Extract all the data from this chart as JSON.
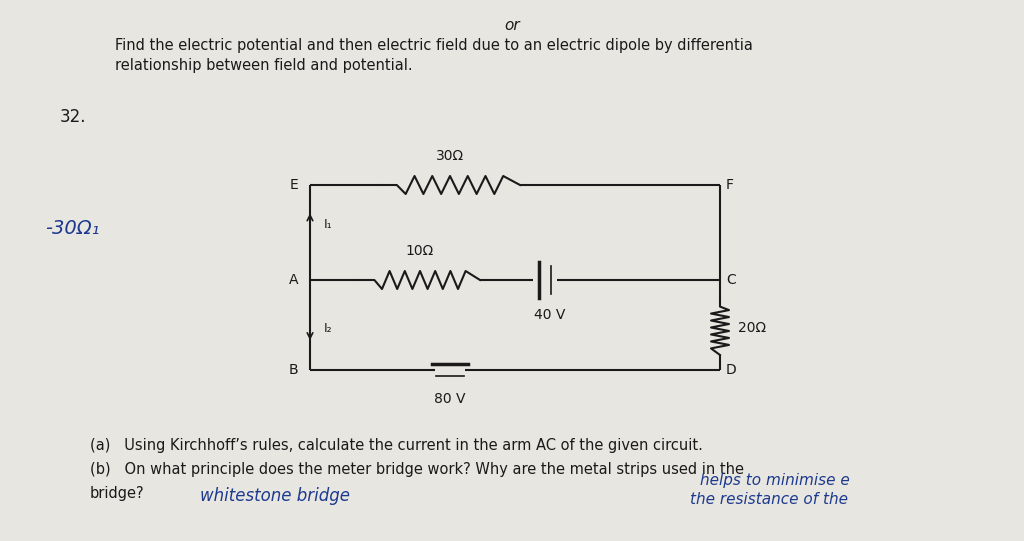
{
  "bg_color": "#e8e6e0",
  "text_color": "#1a1a1a",
  "title_text": "or",
  "body_text1": "Find the electric potential and then electric field due to an electric dipole by differentia",
  "body_text2": "relationship between field and potential.",
  "problem_num": "32.",
  "annotation_left": "-30Ω₁",
  "circuit": {
    "resistor_top_label": "30Ω",
    "resistor_mid_label": "10Ω",
    "battery_mid_label": "40 V",
    "battery_bot_label": "80 V",
    "resistor_right_label": "20Ω",
    "node_E": "E",
    "node_F": "F",
    "node_A": "A",
    "node_C": "C",
    "node_B": "B",
    "node_D": "D",
    "I1_label": "I₁",
    "I2_label": "I₂"
  },
  "qa_a": "(a)   Using Kirchhoff’s rules, calculate the current in the arm AC of the given circuit.",
  "qa_b": "(b)   On what principle does the meter bridge work? Why are the metal strips used in the",
  "qa_b2": "bridge?",
  "handwriting_bridge": "whitestone bridge",
  "handwriting1": "helps to minimise e",
  "handwriting2": "the resistance of the"
}
